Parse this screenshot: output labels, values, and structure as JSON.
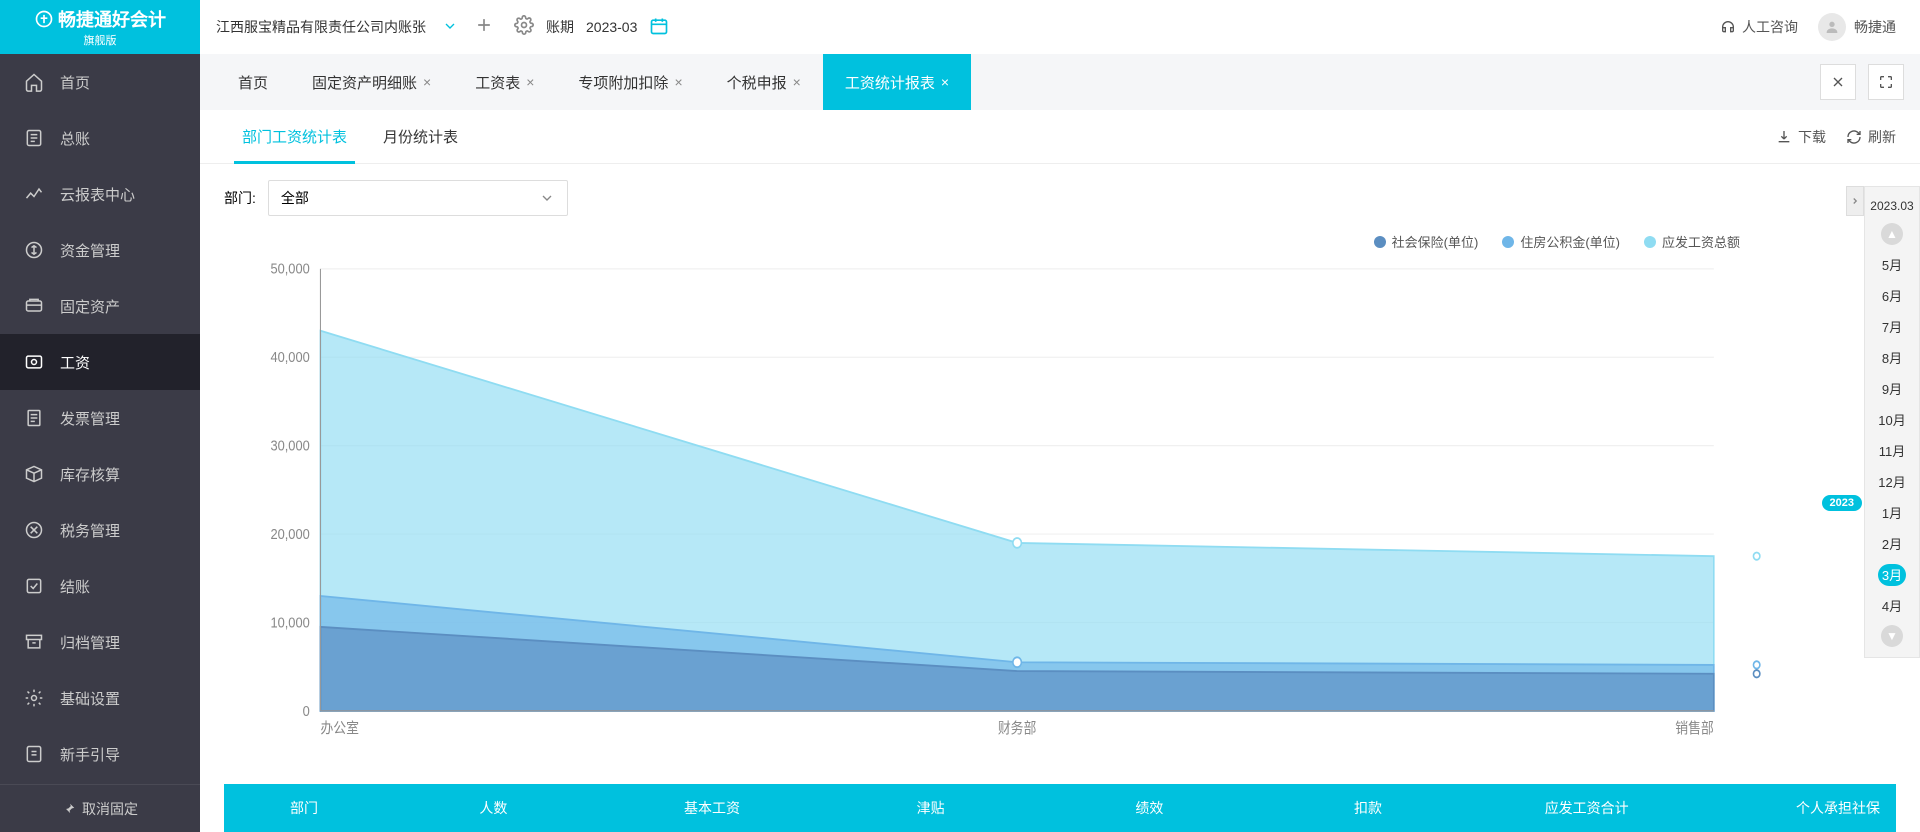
{
  "brand": {
    "name": "畅捷通好会计",
    "edition": "旗舰版"
  },
  "company_name": "江西服宝精品有限责任公司内账张",
  "period": {
    "label": "账期",
    "value": "2023-03"
  },
  "topbar": {
    "consult": "人工咨询",
    "username": "畅捷通"
  },
  "sidebar": {
    "items": [
      {
        "label": "首页",
        "icon": "home"
      },
      {
        "label": "总账",
        "icon": "ledger"
      },
      {
        "label": "云报表中心",
        "icon": "report"
      },
      {
        "label": "资金管理",
        "icon": "money"
      },
      {
        "label": "固定资产",
        "icon": "asset"
      },
      {
        "label": "工资",
        "icon": "salary"
      },
      {
        "label": "发票管理",
        "icon": "invoice"
      },
      {
        "label": "库存核算",
        "icon": "stock"
      },
      {
        "label": "税务管理",
        "icon": "tax"
      },
      {
        "label": "结账",
        "icon": "close"
      },
      {
        "label": "归档管理",
        "icon": "archive"
      },
      {
        "label": "基础设置",
        "icon": "settings"
      },
      {
        "label": "新手引导",
        "icon": "guide"
      }
    ],
    "footer": "取消固定"
  },
  "tabs": [
    {
      "label": "首页",
      "closable": false
    },
    {
      "label": "固定资产明细账",
      "closable": true
    },
    {
      "label": "工资表",
      "closable": true
    },
    {
      "label": "专项附加扣除",
      "closable": true
    },
    {
      "label": "个税申报",
      "closable": true
    },
    {
      "label": "工资统计报表",
      "closable": true,
      "active": true
    }
  ],
  "sub_tabs": [
    {
      "label": "部门工资统计表",
      "active": true
    },
    {
      "label": "月份统计表",
      "active": false
    }
  ],
  "actions": {
    "download": "下载",
    "refresh": "刷新"
  },
  "filter": {
    "dept_label": "部门:",
    "dept_value": "全部"
  },
  "chart": {
    "type": "area",
    "categories": [
      "办公室",
      "财务部",
      "销售部"
    ],
    "series": [
      {
        "name": "社会保险(单位)",
        "color": "#5b8ec1",
        "values": [
          9500,
          4500,
          4200
        ]
      },
      {
        "name": "住房公积金(单位)",
        "color": "#6fb6e8",
        "values": [
          13000,
          5500,
          5200
        ]
      },
      {
        "name": "应发工资总额",
        "color": "#8fdcf2",
        "values": [
          43000,
          19000,
          17500
        ]
      }
    ],
    "ylim": [
      0,
      50000
    ],
    "ytick_step": 10000,
    "yticks": [
      "0",
      "10,000",
      "20,000",
      "30,000",
      "40,000",
      "50,000"
    ],
    "grid_color": "#f0f0f0",
    "axis_color": "#999999",
    "label_color": "#888888",
    "label_fontsize": 12,
    "fill_opacity": 0.65
  },
  "month_panel": {
    "top_year": "2023.03",
    "months": [
      "5月",
      "6月",
      "7月",
      "8月",
      "9月",
      "10月",
      "11月",
      "12月",
      "1月",
      "2月",
      "3月",
      "4月"
    ],
    "current_index": 10,
    "year_badge": "2023"
  },
  "table_header": {
    "cols": [
      "部门",
      "人数",
      "基本工资",
      "津贴",
      "绩效",
      "扣款",
      "应发工资合计"
    ],
    "scroll_hint": "个人承担社保"
  }
}
